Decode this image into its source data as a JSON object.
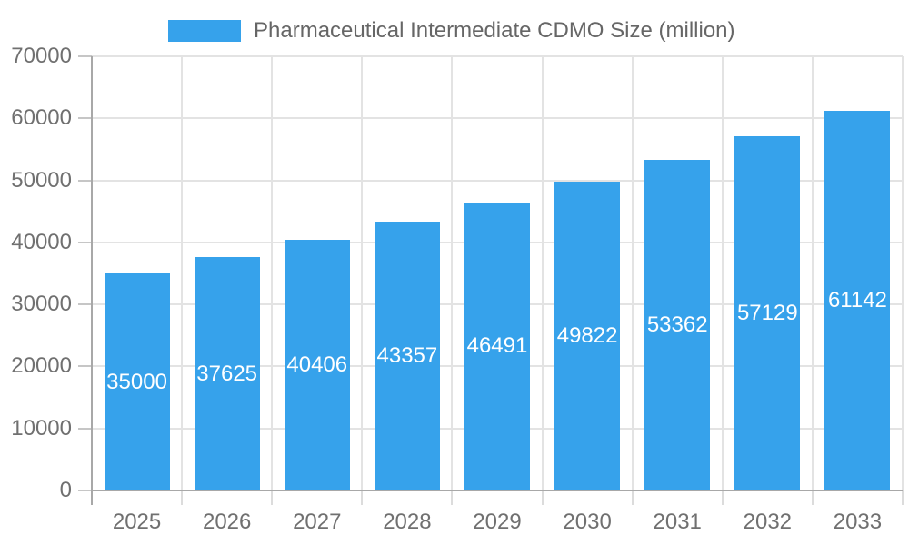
{
  "chart_data": {
    "type": "bar",
    "title": "Pharmaceutical Intermediate CDMO Size (million)",
    "legend_position": "top",
    "categories": [
      "2025",
      "2026",
      "2027",
      "2028",
      "2029",
      "2030",
      "2031",
      "2032",
      "2033"
    ],
    "series": [
      {
        "name": "Pharmaceutical Intermediate CDMO Size (million)",
        "values": [
          35000,
          37625,
          40406,
          43357,
          46491,
          49822,
          53362,
          57129,
          61142
        ]
      }
    ],
    "value_labels": [
      "35000",
      "37625",
      "40406",
      "43357",
      "46491",
      "49822",
      "53362",
      "57129",
      "61142"
    ],
    "xlabel": "",
    "ylabel": "",
    "ylim": [
      0,
      70000
    ],
    "ytick_step": 10000,
    "ytick_labels": [
      "0",
      "10000",
      "20000",
      "30000",
      "40000",
      "50000",
      "60000",
      "70000"
    ],
    "grid": true,
    "colors": {
      "bar": "#36A2EB",
      "value_label": "#FFFFFF",
      "legend_text": "#666666",
      "tick_label": "#707070",
      "gridline": "#E3E3E3",
      "axis_line": "#A8A8A8",
      "x_tick_mark": "#DCDCDC",
      "y_tick_mark": "#C6C6C6",
      "background": "#FFFFFF"
    }
  }
}
